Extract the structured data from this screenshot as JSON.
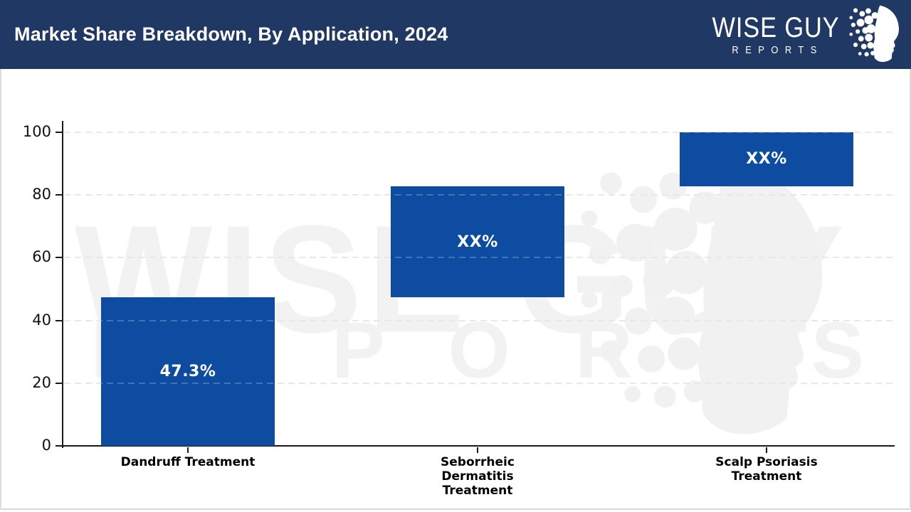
{
  "header": {
    "title": "Market Share Breakdown, By Application, 2024",
    "bg_color": "#1f3864",
    "logo": {
      "line1": "WISE GUY",
      "line2": "REPORTS"
    }
  },
  "watermark": {
    "line1": "WISE GUY",
    "line2": "R E P O R T S"
  },
  "chart_data": {
    "type": "bar",
    "subtype": "waterfall-stacked-breakdown",
    "title": "Market Share Breakdown, By Application, 2024",
    "categories": [
      "Dandruff Treatment",
      "Seborrheic Dermatitis Treatment",
      "Scalp Psoriasis Treatment"
    ],
    "category_lines": [
      [
        "Dandruff Treatment"
      ],
      [
        "Seborrheic",
        "Dermatitis",
        "Treatment"
      ],
      [
        "Scalp Psoriasis",
        "Treatment"
      ]
    ],
    "segments": [
      {
        "category": "Dandruff Treatment",
        "start": 0,
        "end": 47.3,
        "label": "47.3%"
      },
      {
        "category": "Seborrheic Dermatitis Treatment",
        "start": 47.3,
        "end": 82.8,
        "label": "XX%"
      },
      {
        "category": "Scalp Psoriasis Treatment",
        "start": 82.8,
        "end": 100,
        "label": "XX%"
      }
    ],
    "xlabel": "",
    "ylabel": "",
    "ylim": [
      0,
      100
    ],
    "yticks": [
      "0",
      "20",
      "40",
      "60",
      "80",
      "100"
    ],
    "grid": "horizontal-dashed",
    "legend": "none",
    "bar_color": "#0d4ca0",
    "bar_label_color": "#ffffff",
    "axis_color": "#1a1a1a"
  }
}
